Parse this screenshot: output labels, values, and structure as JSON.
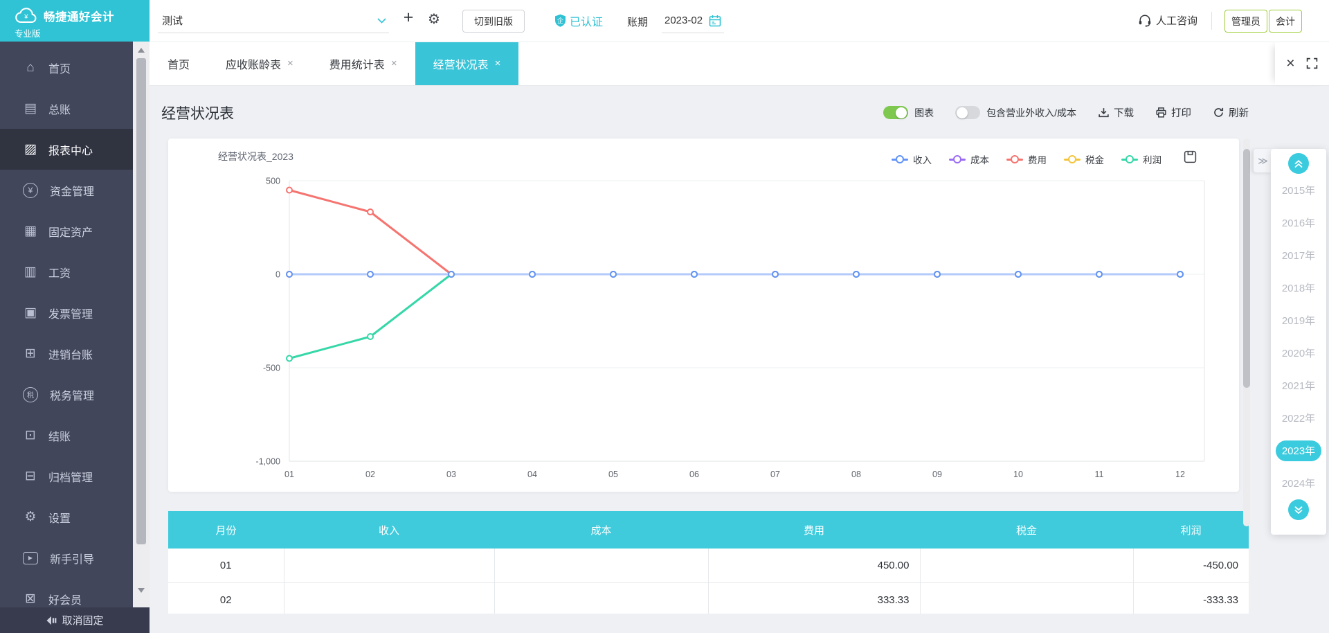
{
  "brand": {
    "name": "畅捷通好会计",
    "edition": "专业版",
    "logo_icon": "cloud-icon"
  },
  "topbar": {
    "account_select": {
      "value": "测试",
      "icon": "chevron-down-icon"
    },
    "add_button": "+",
    "settings_icon": "gear-icon",
    "switch_old_button": "切到旧版",
    "certified_badge": {
      "icon": "shield-icon",
      "label": "已认证"
    },
    "period": {
      "label": "账期",
      "value": "2023-02",
      "icon": "calendar-icon"
    },
    "support": {
      "icon": "headset-icon",
      "label": "人工咨询"
    },
    "role_badges": [
      "管理员",
      "会计"
    ]
  },
  "sidebar": {
    "items": [
      {
        "id": "home",
        "label": "首页",
        "icon": "home-icon",
        "active": false
      },
      {
        "id": "general-ledger",
        "label": "总账",
        "icon": "ledger-icon",
        "active": false
      },
      {
        "id": "report-center",
        "label": "报表中心",
        "icon": "report-center-icon",
        "active": true
      },
      {
        "id": "funds",
        "label": "资金管理",
        "icon": "money-bag-icon",
        "active": false
      },
      {
        "id": "fixed-assets",
        "label": "固定资产",
        "icon": "fixed-assets-icon",
        "active": false
      },
      {
        "id": "salary",
        "label": "工资",
        "icon": "salary-icon",
        "active": false
      },
      {
        "id": "invoice",
        "label": "发票管理",
        "icon": "invoice-icon",
        "active": false
      },
      {
        "id": "inventory",
        "label": "进销台账",
        "icon": "inventory-icon",
        "active": false
      },
      {
        "id": "tax",
        "label": "税务管理",
        "icon": "tax-icon",
        "active": false
      },
      {
        "id": "closing",
        "label": "结账",
        "icon": "closing-icon",
        "active": false
      },
      {
        "id": "archive",
        "label": "归档管理",
        "icon": "archive-icon",
        "active": false
      },
      {
        "id": "settings",
        "label": "设置",
        "icon": "settings-icon",
        "active": false
      },
      {
        "id": "guide",
        "label": "新手引导",
        "icon": "guide-icon",
        "active": false
      },
      {
        "id": "member",
        "label": "好会员",
        "icon": "member-icon",
        "active": false,
        "clipped": true
      }
    ],
    "footer": {
      "icon": "unpin-icon",
      "label": "取消固定"
    }
  },
  "tabs": {
    "items": [
      {
        "id": "home",
        "label": "首页",
        "closable": false,
        "active": false
      },
      {
        "id": "receivable-aging",
        "label": "应收账龄表",
        "closable": true,
        "active": false
      },
      {
        "id": "expense-stats",
        "label": "费用统计表",
        "closable": true,
        "active": false
      },
      {
        "id": "operating-status",
        "label": "经营状况表",
        "closable": true,
        "active": true
      }
    ],
    "close_icon": "close-icon",
    "fullscreen_icon": "fullscreen-icon"
  },
  "page": {
    "title": "经营状况表",
    "toggles": [
      {
        "id": "chart-toggle",
        "label": "图表",
        "on": true
      },
      {
        "id": "include-nonoperating-toggle",
        "label": "包含营业外收入/成本",
        "on": false
      }
    ],
    "actions": [
      {
        "id": "download",
        "label": "下载",
        "icon": "download-icon"
      },
      {
        "id": "print",
        "label": "打印",
        "icon": "print-icon"
      },
      {
        "id": "refresh",
        "label": "刷新",
        "icon": "refresh-icon"
      }
    ]
  },
  "chart_data": {
    "type": "line",
    "title": "经营状况表_2023",
    "x_labels": [
      "01",
      "02",
      "03",
      "04",
      "05",
      "06",
      "07",
      "08",
      "09",
      "10",
      "11",
      "12"
    ],
    "ylim": [
      -1000,
      500
    ],
    "yticks": [
      500,
      0,
      -500,
      -1000
    ],
    "ytick_labels": [
      "500",
      "0",
      "-500",
      "-1,000"
    ],
    "grid": true,
    "legend_position": "top-right",
    "save_icon": "save-image-icon",
    "series": [
      {
        "name": "收入",
        "color": "#6293f8",
        "line_color": "#b3cafb",
        "values": [
          0,
          0,
          0,
          0,
          0,
          0,
          0,
          0,
          0,
          0,
          0,
          0
        ]
      },
      {
        "name": "成本",
        "color": "#9a6cf5",
        "values": [
          0,
          0,
          0,
          0,
          0,
          0,
          0,
          0,
          0,
          0,
          0,
          0
        ]
      },
      {
        "name": "费用",
        "color": "#f57470",
        "values": [
          450,
          333.33,
          0,
          0,
          0,
          0,
          0,
          0,
          0,
          0,
          0,
          0
        ]
      },
      {
        "name": "税金",
        "color": "#f3c53d",
        "values": [
          0,
          0,
          0,
          0,
          0,
          0,
          0,
          0,
          0,
          0,
          0,
          0
        ]
      },
      {
        "name": "利润",
        "color": "#36d7a8",
        "values": [
          -450,
          -333.33,
          0,
          0,
          0,
          0,
          0,
          0,
          0,
          0,
          0,
          0
        ]
      }
    ]
  },
  "table": {
    "headers": [
      "月份",
      "收入",
      "成本",
      "费用",
      "税金",
      "利润"
    ],
    "rows": [
      [
        "01",
        "",
        "",
        "450.00",
        "",
        "-450.00"
      ],
      [
        "02",
        "",
        "",
        "333.33",
        "",
        "-333.33"
      ]
    ]
  },
  "year_panel": {
    "collapse_icon": "double-arrow-right-icon",
    "up_icon": "double-chevron-up-icon",
    "down_icon": "double-chevron-down-icon",
    "years": [
      "2015年",
      "2016年",
      "2017年",
      "2018年",
      "2019年",
      "2020年",
      "2021年",
      "2022年",
      "2023年",
      "2024年"
    ],
    "selected": "2023年"
  },
  "colors": {
    "teal": "#3bc5d8",
    "table_header": "#3fcbdc",
    "sidebar_bg": "#42465a",
    "sidebar_active_bg": "#303340",
    "page_bg": "#eef0f4",
    "toggle_on": "#7ec850",
    "badge_border": "#9fce3a"
  }
}
